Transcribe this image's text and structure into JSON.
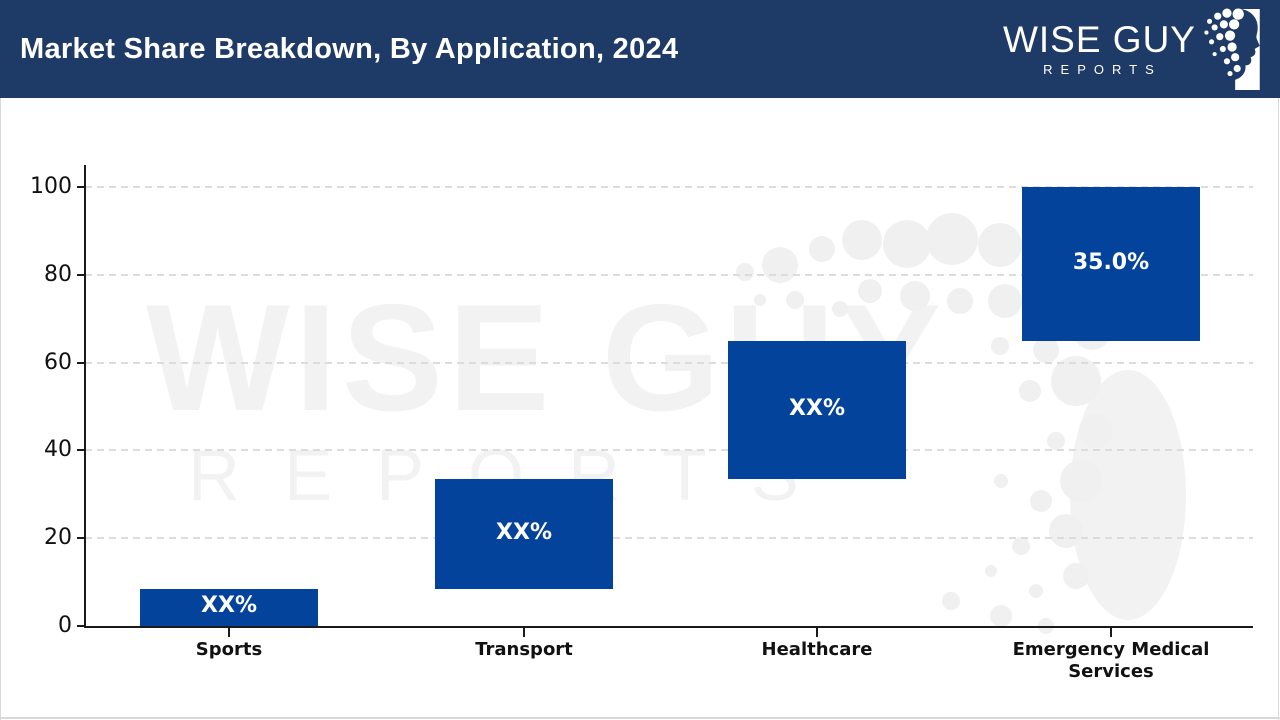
{
  "header": {
    "title": "Market Share Breakdown, By Application, 2024",
    "bg_color": "#1e3a66",
    "logo": {
      "line1": "WISE GUY",
      "line2": "REPORTS"
    }
  },
  "watermark": {
    "line1": "WISE GUY",
    "line2": "REPORTS"
  },
  "chart_data": {
    "type": "bar",
    "subtype": "waterfall",
    "title": "Market Share Breakdown, By Application, 2024",
    "categories": [
      "Sports",
      "Transport",
      "Healthcare",
      "Emergency Medical\nServices"
    ],
    "series": [
      {
        "name": "Market Share (%)",
        "bars": [
          {
            "category": "Sports",
            "start": 0,
            "end": 8.5,
            "label": "XX%"
          },
          {
            "category": "Transport",
            "start": 8.5,
            "end": 33.5,
            "label": "XX%"
          },
          {
            "category": "Healthcare",
            "start": 33.5,
            "end": 65,
            "label": "XX%"
          },
          {
            "category": "Emergency Medical Services",
            "start": 65,
            "end": 100,
            "label": "35.0%"
          }
        ]
      }
    ],
    "ylim": [
      0,
      100
    ],
    "yticks": [
      0,
      20,
      40,
      60,
      80,
      100
    ],
    "grid": "horizontal-dashed",
    "legend": "none",
    "bar_color": "#04439b",
    "grid_color": "#dcdcdc"
  }
}
